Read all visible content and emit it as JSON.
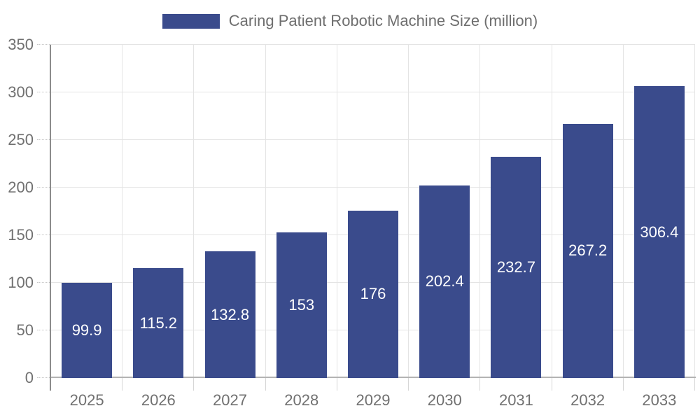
{
  "chart_data": {
    "type": "bar",
    "title": "Caring Patient Robotic Machine Size (million)",
    "categories": [
      "2025",
      "2026",
      "2027",
      "2028",
      "2029",
      "2030",
      "2031",
      "2032",
      "2033"
    ],
    "values": [
      99.9,
      115.2,
      132.8,
      153,
      176,
      202.4,
      232.7,
      267.2,
      306.4
    ],
    "value_labels": [
      "99.9",
      "115.2",
      "132.8",
      "153",
      "176",
      "202.4",
      "232.7",
      "267.2",
      "306.4"
    ],
    "xlabel": "",
    "ylabel": "",
    "ylim": [
      0,
      350
    ],
    "yticks": [
      0,
      50,
      100,
      150,
      200,
      250,
      300,
      350
    ],
    "grid": true,
    "legend_position": "top-center"
  },
  "colors": {
    "bar": "#3a4b8c",
    "bar_value_text": "#ffffff",
    "legend_text": "#6e6e6e",
    "tick_text": "#707070",
    "gridline": "#e4e4e4",
    "y_axis_line": "#8c8c8c",
    "x_axis_line": "#b3b3b3",
    "x_tick": "#d6d6d6",
    "background": "#ffffff"
  }
}
